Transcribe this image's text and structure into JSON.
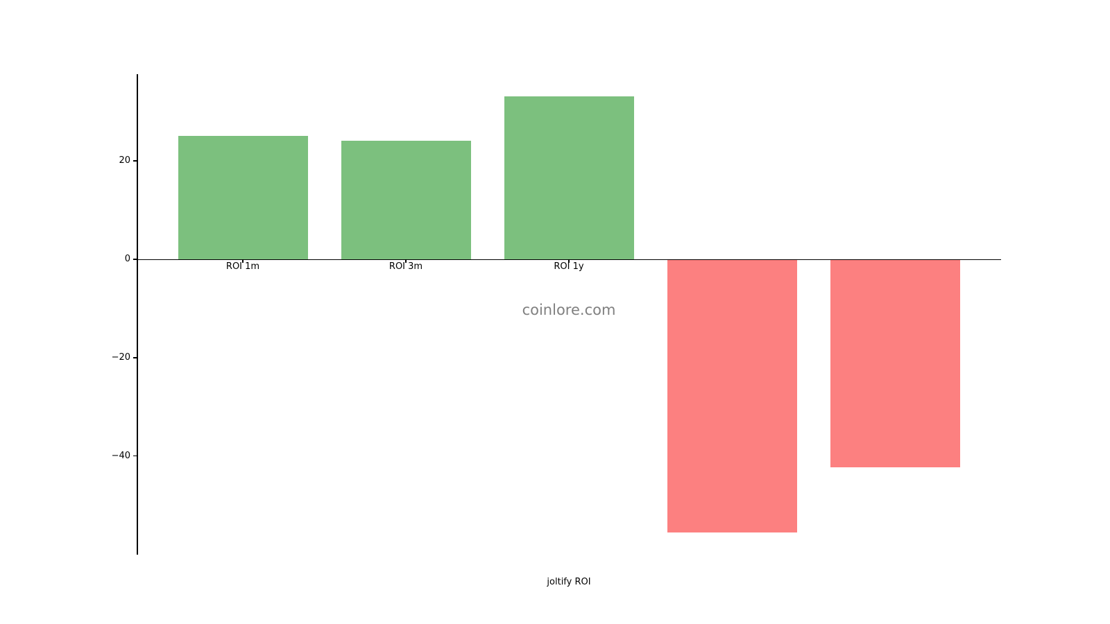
{
  "page": {
    "background": "#ffffff"
  },
  "watermark": {
    "text": "coinlore.com",
    "color": "#808080"
  },
  "chart_data": {
    "type": "bar",
    "title": "",
    "xlabel": "joltify ROI",
    "ylabel": "",
    "categories": [
      "ROI 1m",
      "ROI 3m",
      "ROI 1y",
      "",
      ""
    ],
    "values": [
      25.1,
      24.1,
      33.1,
      -55.6,
      -42.3
    ],
    "positive_color": "#7cc07e",
    "negative_color": "#fc8080",
    "axis_color": "#000000",
    "text_color": "#000000",
    "ylim": [
      -60.2,
      37.5
    ],
    "yticks": [
      20,
      0,
      -20,
      -40
    ],
    "ytick_labels": [
      "20",
      "0",
      "−20",
      "−40"
    ],
    "grid": false,
    "legend": false,
    "note": "x tick labels for the two negative bars are hidden behind the red bars"
  }
}
